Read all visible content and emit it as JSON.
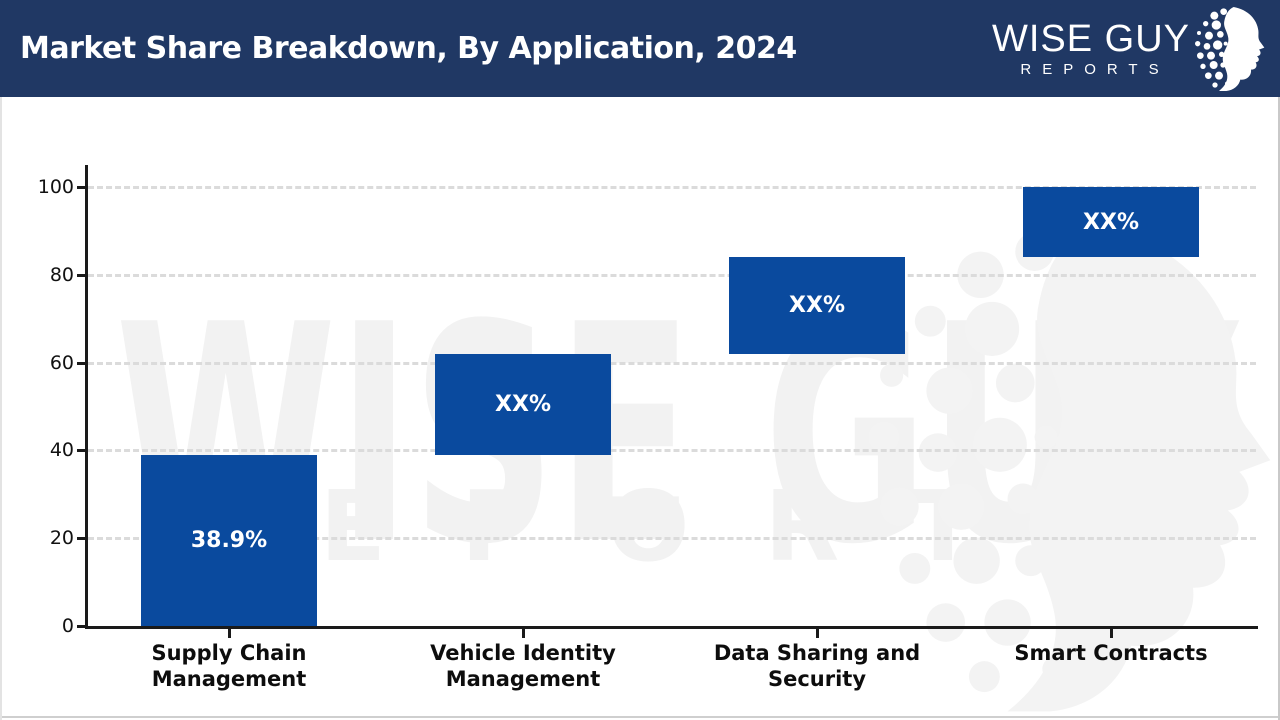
{
  "header": {
    "title": "Market Share Breakdown, By Application, 2024"
  },
  "brand": {
    "name_top": "WISE GUY",
    "name_bottom": "REPORTS"
  },
  "watermark": {
    "line1": "WISE GUY",
    "line2": "REPORTS"
  },
  "colors": {
    "header_bg": "#203864",
    "bar": "#0a4a9e",
    "bar_label": "#ffffff",
    "grid": "#dbdbdb",
    "axis": "#1a1a1a",
    "watermark": "#f2f2f2"
  },
  "chart_data": {
    "type": "bar",
    "subtype": "floating-waterfall",
    "title": "Market Share Breakdown, By Application, 2024",
    "categories": [
      "Supply Chain Management",
      "Vehicle Identity Management",
      "Data Sharing and Security",
      "Smart Contracts"
    ],
    "category_lines": [
      [
        "Supply Chain",
        "Management"
      ],
      [
        "Vehicle Identity",
        "Management"
      ],
      [
        "Data Sharing and",
        "Security"
      ],
      [
        "Smart Contracts"
      ]
    ],
    "series": [
      {
        "name": "Market share (%)",
        "segments": [
          {
            "category": "Supply Chain Management",
            "start": 0,
            "end": 38.9,
            "label": "38.9%"
          },
          {
            "category": "Vehicle Identity Management",
            "start": 38.9,
            "end": 62,
            "label": "XX%"
          },
          {
            "category": "Data Sharing and Security",
            "start": 62,
            "end": 84,
            "label": "XX%"
          },
          {
            "category": "Smart Contracts",
            "start": 84,
            "end": 100,
            "label": "XX%"
          }
        ]
      }
    ],
    "xlabel": "",
    "ylabel": "",
    "ylim": [
      0,
      104
    ],
    "yticks": [
      0,
      20,
      40,
      60,
      80,
      100
    ],
    "grid": "horizontal dashed",
    "legend": "none",
    "bar_color": "#0a4a9e",
    "bar_label_color": "#ffffff"
  }
}
